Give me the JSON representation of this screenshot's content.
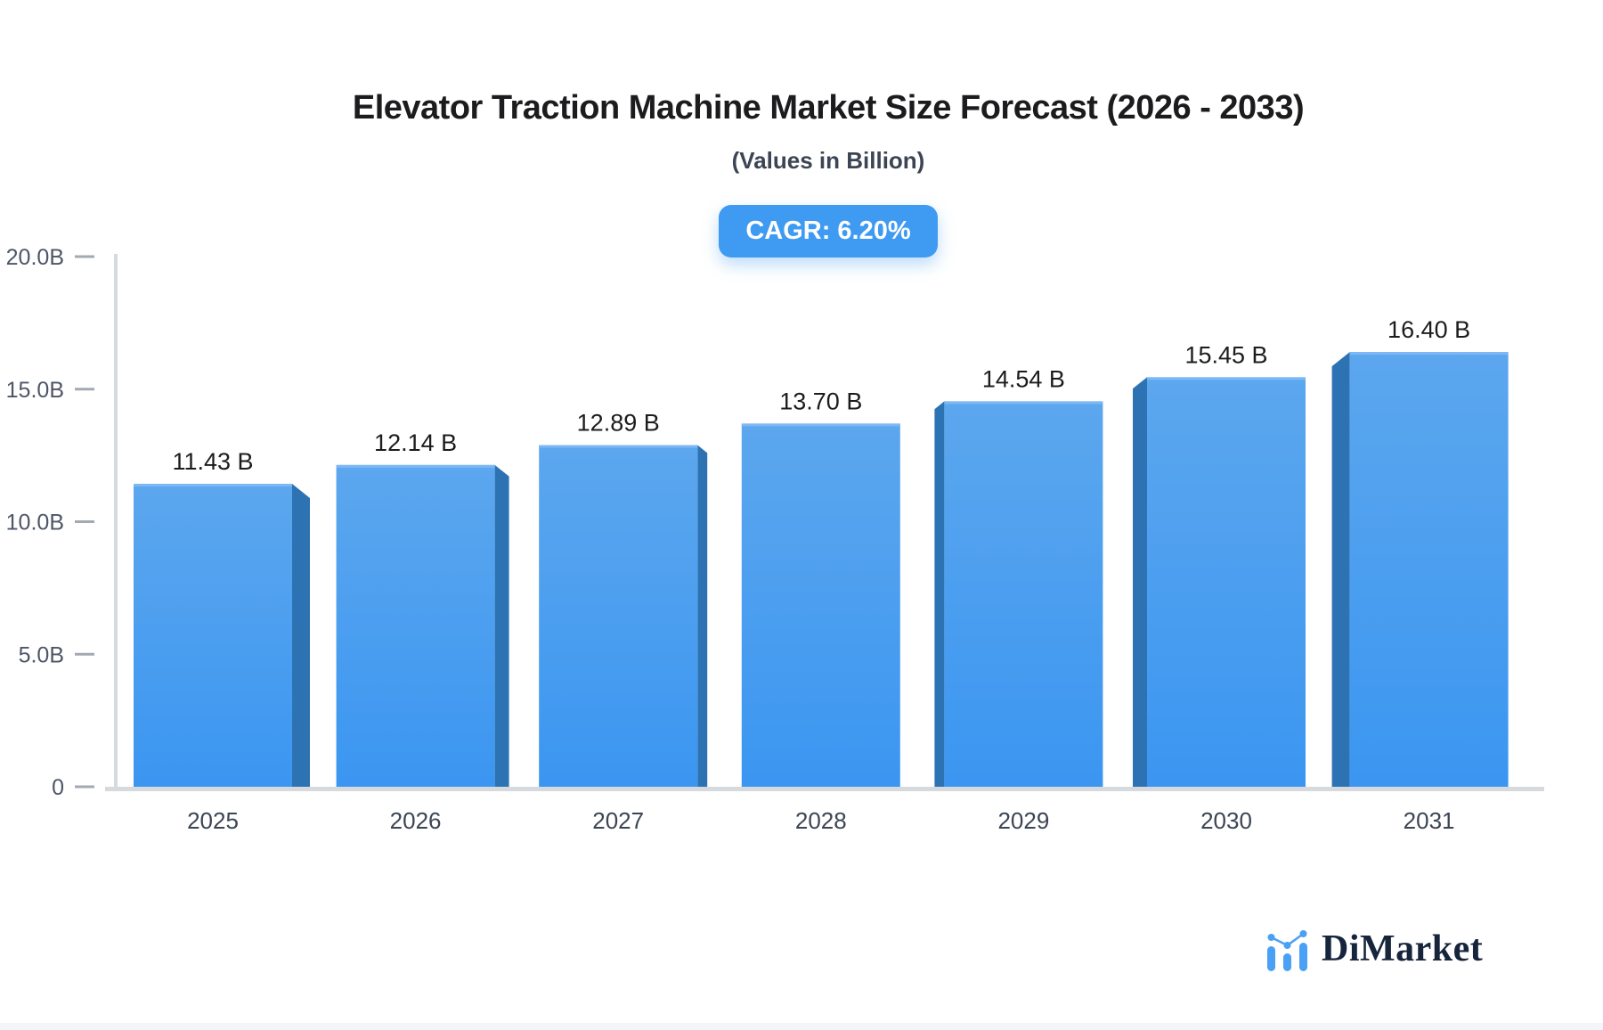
{
  "header": {
    "title": "Elevator Traction Machine Market Size Forecast (2026 - 2033)",
    "subtitle": "(Values in Billion)",
    "cagr_badge": "CAGR: 6.20%"
  },
  "chart_data": {
    "type": "bar",
    "title": "Elevator Traction Machine Market Size Forecast (2026 - 2033)",
    "subtitle": "(Values in Billion)",
    "categories": [
      "2025",
      "2026",
      "2027",
      "2028",
      "2029",
      "2030",
      "2031"
    ],
    "values": [
      11.43,
      12.14,
      12.89,
      13.7,
      14.54,
      15.45,
      16.4
    ],
    "value_labels": [
      "11.43 B",
      "12.14 B",
      "12.89 B",
      "13.70 B",
      "14.54 B",
      "15.45 B",
      "16.40 B"
    ],
    "xlabel": "",
    "ylabel": "",
    "ylim": [
      0,
      20
    ],
    "y_ticks": [
      {
        "value": 0,
        "label": "0"
      },
      {
        "value": 5,
        "label": "5.0B"
      },
      {
        "value": 10,
        "label": "10.0B"
      },
      {
        "value": 15,
        "label": "15.0B"
      },
      {
        "value": 20,
        "label": "20.0B"
      }
    ],
    "grid": false,
    "legend": false,
    "annotations": [
      "CAGR: 6.20%"
    ],
    "colors": {
      "bar_face_top": "#5CA7EE",
      "bar_face_bottom": "#3B96F1",
      "bar_top_highlight": "#7EB8F4",
      "bar_side": "#2D73B4",
      "axis_line": "#D6D9DE",
      "tick_dash": "#A3A9B3",
      "tick_label": "#4D5668",
      "category_label": "#3B4554",
      "value_label": "#1C1C1E",
      "badge_blue": "#3F9AF1"
    }
  },
  "branding": {
    "logo_text": "DiMarket",
    "logo_icon": "bar-chart-sparkline-icon",
    "logo_text_color": "#16243C",
    "logo_icon_color": "#4AA0F5"
  }
}
